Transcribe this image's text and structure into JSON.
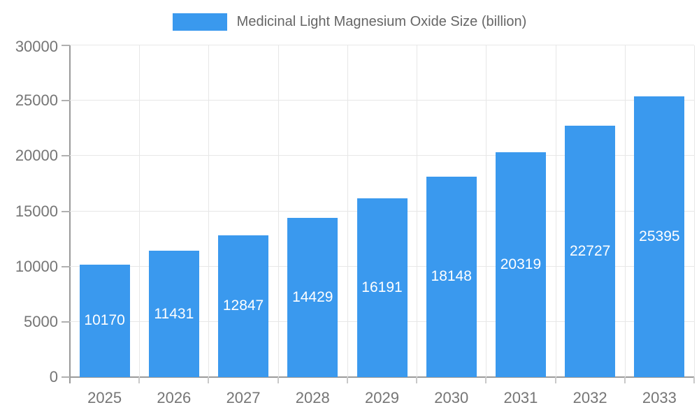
{
  "legend": {
    "label": "Medicinal Light Magnesium Oxide Size (billion)",
    "swatch_color": "#3a99ee"
  },
  "chart_data": {
    "type": "bar",
    "title": "Medicinal Light Magnesium Oxide Size (billion)",
    "categories": [
      "2025",
      "2026",
      "2027",
      "2028",
      "2029",
      "2030",
      "2031",
      "2032",
      "2033"
    ],
    "values": [
      10170,
      11431,
      12847,
      14429,
      16191,
      18148,
      20319,
      22727,
      25395
    ],
    "xlabel": "",
    "ylabel": "",
    "ylim": [
      0,
      30000
    ],
    "yticks": [
      0,
      5000,
      10000,
      15000,
      20000,
      25000,
      30000
    ],
    "grid": true,
    "legend_position": "top",
    "bar_color": "#3a99ee",
    "value_label_color": "#ffffff",
    "axis_label_color": "#757575",
    "gridline_color": "#e7e7e7"
  }
}
